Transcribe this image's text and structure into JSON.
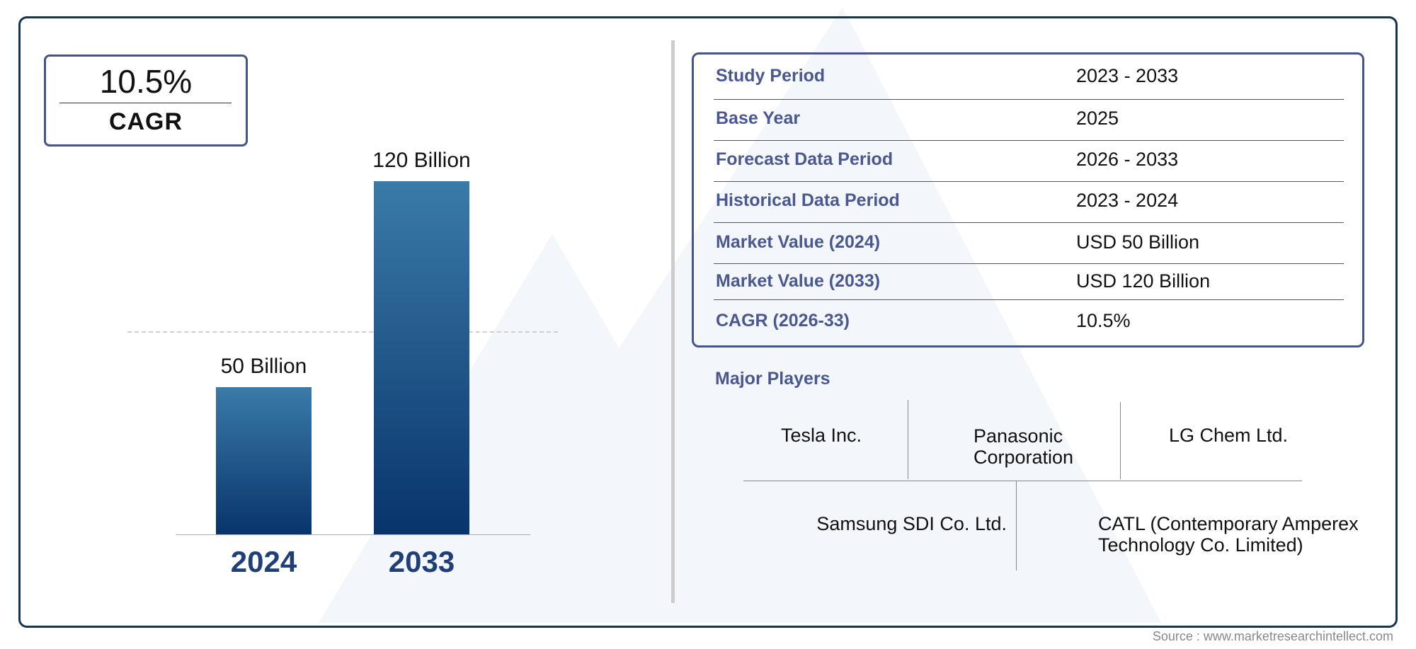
{
  "cagr_badge": {
    "value": "10.5%",
    "label": "CAGR"
  },
  "chart_data": {
    "type": "bar",
    "categories": [
      "2024",
      "2033"
    ],
    "values": [
      50,
      120
    ],
    "data_labels": [
      "50 Billion",
      "120 Billion"
    ],
    "unit": "Billion",
    "grid": false,
    "reference_line": 50,
    "colors": {
      "bar_top": "#3a7ba8",
      "bar_bottom": "#08346b",
      "year_label": "#1f3f7a"
    }
  },
  "summary_table": {
    "rows": [
      {
        "label": "Study Period",
        "value": "2023 - 2033"
      },
      {
        "label": "Base Year",
        "value": "2025"
      },
      {
        "label": "Forecast Data Period",
        "value": "2026 - 2033"
      },
      {
        "label": "Historical Data Period",
        "value": "2023 - 2024"
      },
      {
        "label": "Market Value (2024)",
        "value": "USD 50 Billion"
      },
      {
        "label": "Market Value (2033)",
        "value": "USD 120 Billion"
      },
      {
        "label": "CAGR (2026-33)",
        "value": "10.5%"
      }
    ]
  },
  "major_players": {
    "title": "Major Players",
    "items": [
      "Tesla Inc.",
      "Panasonic Corporation",
      "LG Chem Ltd.",
      "Samsung SDI Co. Ltd.",
      "CATL (Contemporary Amperex Technology Co. Limited)"
    ]
  },
  "source": "Source : www.marketresearchintellect.com"
}
